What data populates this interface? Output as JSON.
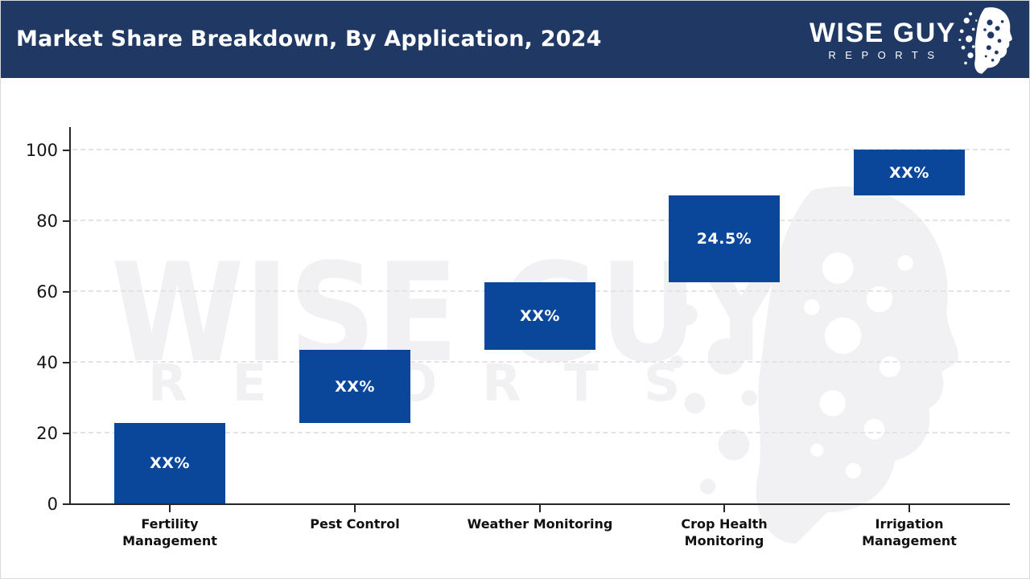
{
  "header": {
    "title": "Market Share Breakdown, By Application, 2024",
    "bg_color": "#1f3864",
    "logo": {
      "line1": "WISE GUY",
      "line2": "REPORTS"
    }
  },
  "watermark": {
    "line1": "WISE GUY",
    "line2": "REPORTS",
    "color": "#f1f1f4"
  },
  "chart_data": {
    "type": "bar",
    "subtype": "waterfall",
    "title": "Market Share Breakdown, By Application, 2024",
    "categories": [
      "Fertility Management",
      "Pest Control",
      "Weather Monitoring",
      "Crop Health Monitoring",
      "Irrigation Management"
    ],
    "categories_lines": [
      [
        "Fertility",
        "Management"
      ],
      [
        "Pest Control"
      ],
      [
        "Weather Monitoring"
      ],
      [
        "Crop Health",
        "Monitoring"
      ],
      [
        "Irrigation",
        "Management"
      ]
    ],
    "segments": [
      {
        "category": "Fertility Management",
        "start": 0,
        "end": 22.7,
        "height": 22.7,
        "label": "XX%"
      },
      {
        "category": "Pest Control",
        "start": 22.7,
        "end": 43.4,
        "height": 20.7,
        "label": "XX%"
      },
      {
        "category": "Weather Monitoring",
        "start": 43.4,
        "end": 62.5,
        "height": 19.1,
        "label": "XX%"
      },
      {
        "category": "Crop Health Monitoring",
        "start": 62.5,
        "end": 87.0,
        "height": 24.5,
        "label": "24.5%"
      },
      {
        "category": "Irrigation Management",
        "start": 87.0,
        "end": 100.0,
        "height": 13.0,
        "label": "XX%"
      }
    ],
    "ylim": [
      0,
      100
    ],
    "yticks": [
      0,
      20,
      40,
      60,
      80,
      100
    ],
    "bar_color": "#0a4699",
    "bar_label_color": "#ffffff",
    "grid": "horizontal-dashed"
  }
}
